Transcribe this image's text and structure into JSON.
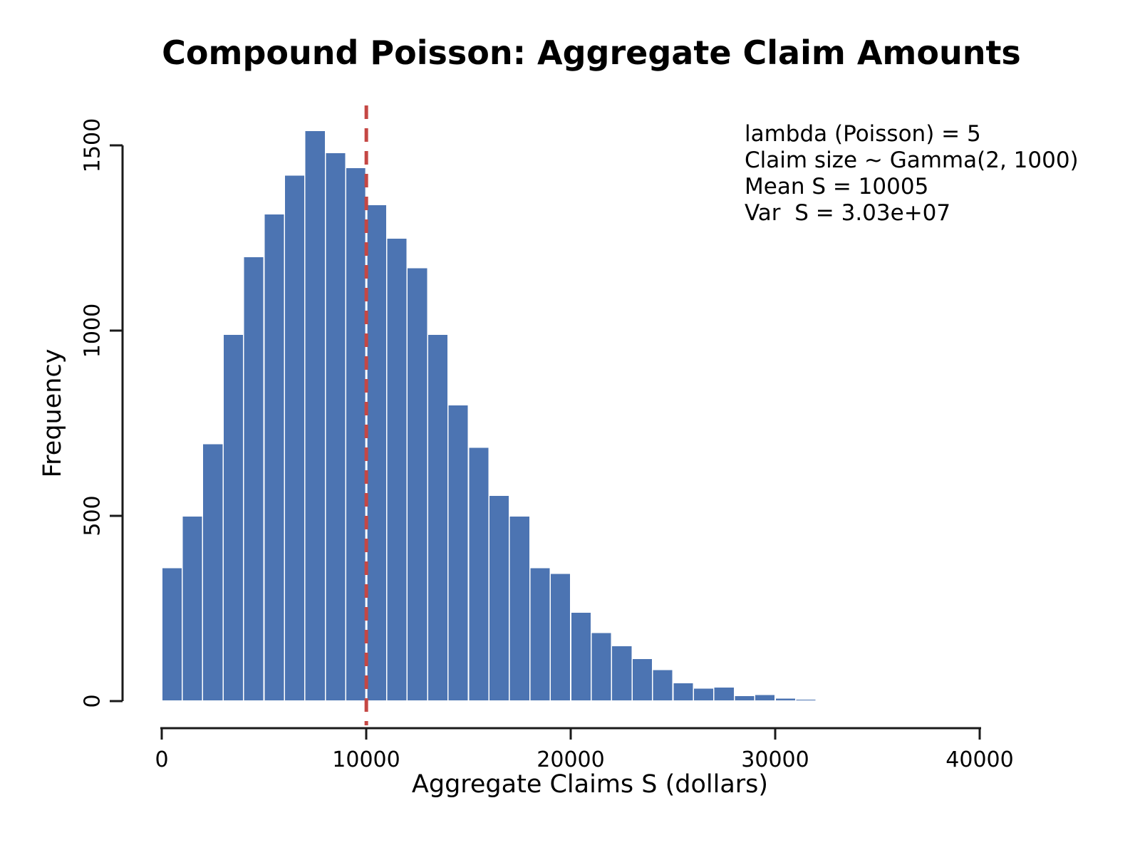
{
  "title": "Compound Poisson: Aggregate Claim Amounts",
  "chart_data": {
    "type": "bar",
    "subtype": "histogram",
    "title": "Compound Poisson: Aggregate Claim Amounts",
    "xlabel": "Aggregate Claims S (dollars)",
    "ylabel": "Frequency",
    "bin_start": 0,
    "bin_width": 1000,
    "counts": [
      360,
      500,
      695,
      990,
      1200,
      1315,
      1420,
      1540,
      1480,
      1440,
      1340,
      1250,
      1170,
      990,
      800,
      685,
      555,
      500,
      360,
      345,
      240,
      185,
      150,
      115,
      85,
      50,
      35,
      38,
      15,
      18,
      8,
      5,
      2,
      2,
      2
    ],
    "x_ticks": [
      0,
      10000,
      20000,
      30000,
      40000
    ],
    "y_ticks": [
      0,
      500,
      1000,
      1500
    ],
    "xlim": [
      0,
      40000
    ],
    "ylim": [
      0,
      1500
    ],
    "grid": false,
    "legend_position": "none",
    "mean_line_x": 10005,
    "annotations": [
      "lambda (Poisson) = 5",
      "Claim size ~ Gamma(2, 1000)",
      "Mean S = 10005",
      "Var  S = 3.03e+07"
    ],
    "bar_color": "#4C74B2",
    "bar_edge_color": "#FFFFFF",
    "mean_line_color": "#C54744",
    "axis_color": "#1a1a1a"
  }
}
